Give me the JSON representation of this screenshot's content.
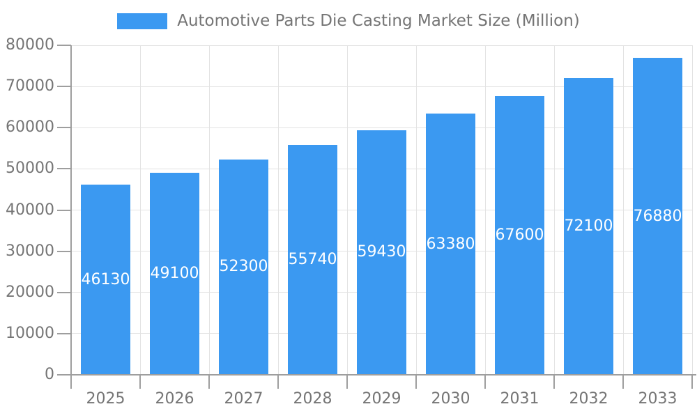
{
  "chart_data": {
    "type": "bar",
    "title": "Automotive Parts Die Casting Market Size (Million)",
    "categories": [
      "2025",
      "2026",
      "2027",
      "2028",
      "2029",
      "2030",
      "2031",
      "2032",
      "2033"
    ],
    "values": [
      46130,
      49100,
      52300,
      55740,
      59430,
      63380,
      67600,
      72100,
      76880
    ],
    "bar_labels": [
      "46130",
      "49100",
      "52300",
      "55740",
      "59430",
      "63380",
      "67600",
      "72100",
      "76880"
    ],
    "y_tick_labels": [
      "0",
      "10000",
      "20000",
      "30000",
      "40000",
      "50000",
      "60000",
      "70000",
      "80000"
    ],
    "xlabel": "",
    "ylabel": "",
    "ylim": [
      0,
      80000
    ],
    "ytick_step": 10000,
    "grid": true,
    "legend_position": "top",
    "colors": {
      "bar": "#3B99F1",
      "bar_value_text": "#ffffff",
      "axis": "#9e9e9e",
      "grid": "#e2e2e2",
      "tick_text": "#757575",
      "legend_text": "#757575",
      "background": "#ffffff"
    }
  }
}
